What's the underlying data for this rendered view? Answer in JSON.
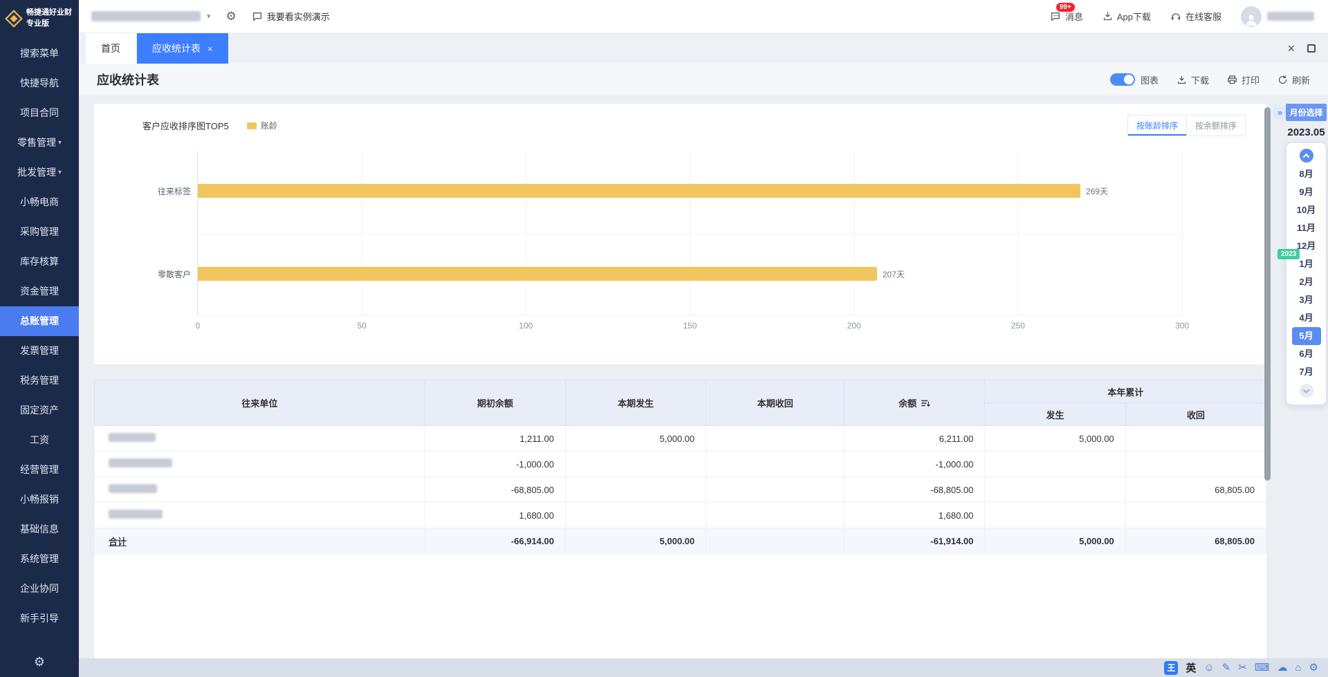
{
  "app": {
    "brand_line1": "畅捷通好业财",
    "brand_line2": "专业版"
  },
  "sidebar": {
    "items": [
      {
        "label": "搜索菜单"
      },
      {
        "label": "快捷导航"
      },
      {
        "label": "项目合同"
      },
      {
        "label": "零售管理",
        "caret": true
      },
      {
        "label": "批发管理",
        "caret": true
      },
      {
        "label": "小畅电商"
      },
      {
        "label": "采购管理"
      },
      {
        "label": "库存核算"
      },
      {
        "label": "资金管理"
      },
      {
        "label": "总账管理",
        "active": true
      },
      {
        "label": "发票管理"
      },
      {
        "label": "税务管理"
      },
      {
        "label": "固定资产"
      },
      {
        "label": "工资"
      },
      {
        "label": "经营管理"
      },
      {
        "label": "小畅报销"
      },
      {
        "label": "基础信息"
      },
      {
        "label": "系统管理"
      },
      {
        "label": "企业协同"
      },
      {
        "label": "新手引导"
      }
    ]
  },
  "topbar": {
    "demo_label": "我要看实例演示",
    "messages_label": "消息",
    "messages_badge": "99+",
    "app_download_label": "App下载",
    "support_label": "在线客服"
  },
  "tabs": {
    "home": "首页",
    "active": "应收统计表"
  },
  "page": {
    "title": "应收统计表",
    "chart_toggle_label": "图表",
    "download_label": "下载",
    "print_label": "打印",
    "refresh_label": "刷新"
  },
  "chart": {
    "sort_age_label": "按账龄排序",
    "sort_balance_label": "按余额排序",
    "accent_blue": "#3D7EFF",
    "bar_color": "#F2C55F"
  },
  "chart_data": {
    "type": "bar",
    "orientation": "horizontal",
    "title": "客户应收排序图TOP5",
    "categories": [
      "往来标签",
      "零散客户"
    ],
    "series": [
      {
        "name": "账龄",
        "values": [
          269,
          207
        ]
      }
    ],
    "value_labels": [
      "269天",
      "207天"
    ],
    "unit": "天",
    "xlim": [
      0,
      300
    ],
    "xticks": [
      0,
      50,
      100,
      150,
      200,
      250,
      300
    ],
    "legend": [
      "账龄"
    ],
    "legend_position": "top-left",
    "grid": true
  },
  "table": {
    "headers": {
      "unit": "往来单位",
      "opening": "期初余额",
      "occur": "本期发生",
      "recv": "本期收回",
      "balance": "余额",
      "ytd": "本年累计",
      "ytd_occur": "发生",
      "ytd_recv": "收回"
    },
    "rows": [
      {
        "name_redacted": true,
        "values": [
          "1,211.00",
          "5,000.00",
          "",
          "6,211.00",
          "5,000.00",
          ""
        ]
      },
      {
        "name_redacted": true,
        "values": [
          "-1,000.00",
          "",
          "",
          "-1,000.00",
          "",
          ""
        ]
      },
      {
        "name_redacted": true,
        "values": [
          "-68,805.00",
          "",
          "",
          "-68,805.00",
          "",
          "68,805.00"
        ]
      },
      {
        "name_redacted": true,
        "values": [
          "1,680.00",
          "",
          "",
          "1,680.00",
          "",
          ""
        ]
      }
    ],
    "total": {
      "label": "合计",
      "values": [
        "-66,914.00",
        "5,000.00",
        "",
        "-61,914.00",
        "5,000.00",
        "68,805.00"
      ]
    }
  },
  "month_panel": {
    "title": "月份选择",
    "current": "2023.05",
    "year_badge": "2023",
    "months": [
      "8月",
      "9月",
      "10月",
      "11月",
      "12月",
      "1月",
      "2月",
      "3月",
      "4月",
      "5月",
      "6月",
      "7月"
    ],
    "active_month": "5月"
  },
  "ime_bar": {
    "logo": "王",
    "mode": "英",
    "icons": [
      {
        "glyph": "☺",
        "name": "emoji-icon"
      },
      {
        "glyph": "✎",
        "name": "pen-icon"
      },
      {
        "glyph": "✂",
        "name": "scissors-icon"
      },
      {
        "glyph": "⌨",
        "name": "keyboard-icon"
      },
      {
        "glyph": "☁",
        "name": "cloud-icon"
      },
      {
        "glyph": "⌂",
        "name": "toolbox-icon"
      },
      {
        "glyph": "⚙",
        "name": "ime-settings-gear-icon"
      }
    ]
  }
}
